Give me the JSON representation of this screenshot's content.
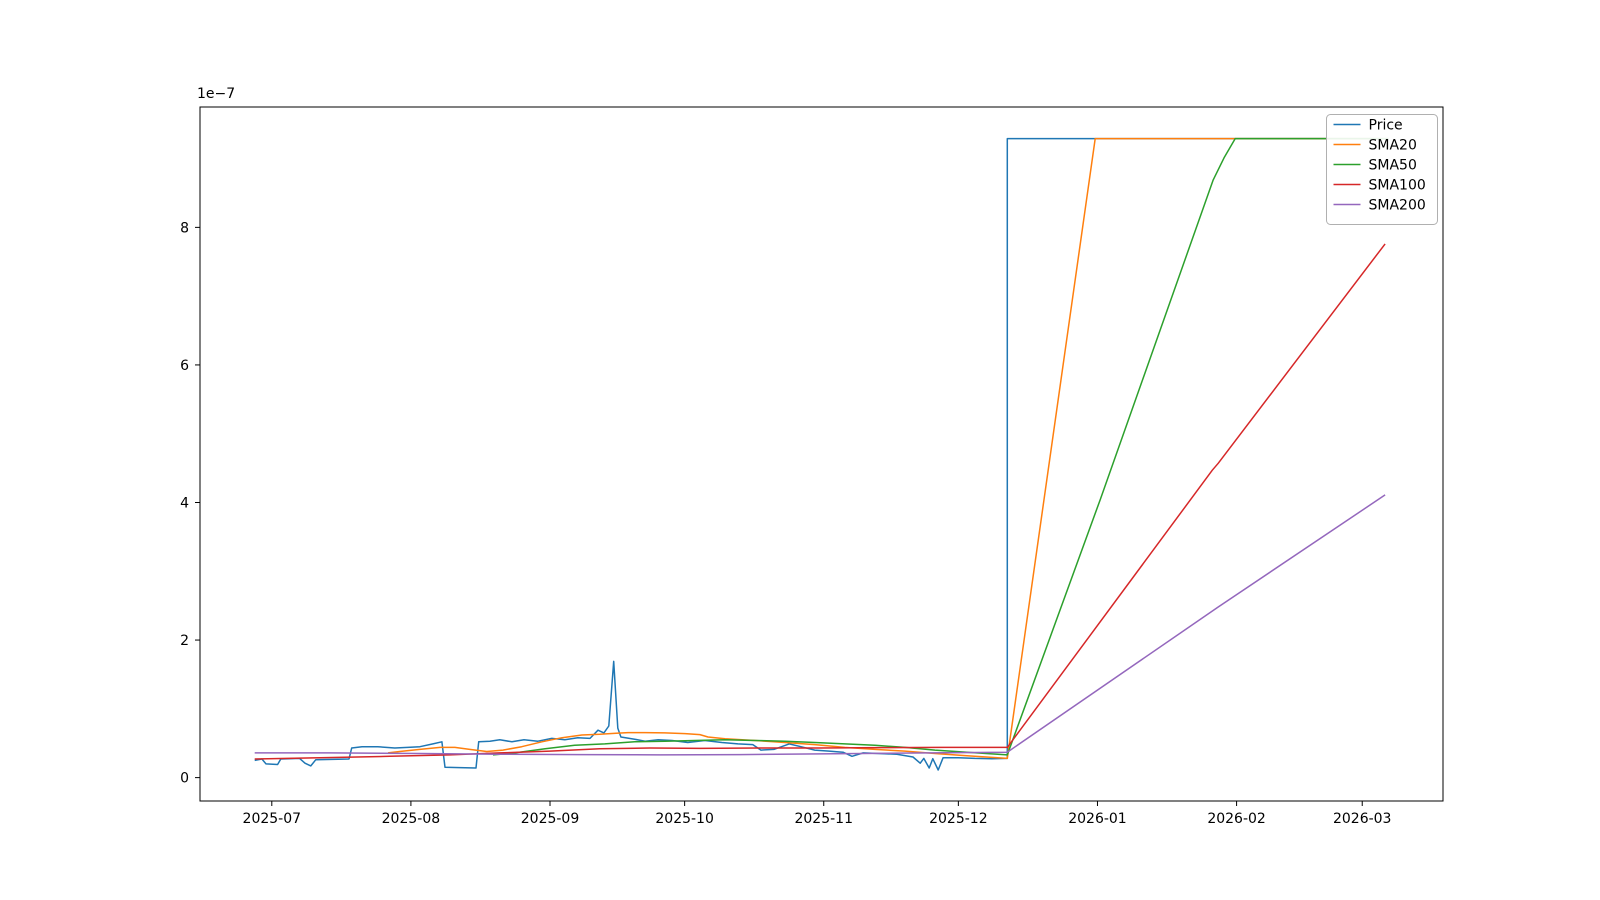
{
  "figure": {
    "background": "#ffffff",
    "plot_border_color": "#000000"
  },
  "chart_data": {
    "type": "line",
    "title": "",
    "xlabel": "",
    "ylabel": "",
    "offset_text": "1e−7",
    "grid": false,
    "legend_position": "upper right",
    "x_unit": "days since 2025-07-01",
    "y_unit": "×1e-7",
    "x_domain": [
      -16,
      261
    ],
    "y_domain": [
      -0.34,
      9.75
    ],
    "x_ticks": [
      {
        "day": 0,
        "label": "2025-07"
      },
      {
        "day": 31,
        "label": "2025-08"
      },
      {
        "day": 62,
        "label": "2025-09"
      },
      {
        "day": 92,
        "label": "2025-10"
      },
      {
        "day": 123,
        "label": "2025-11"
      },
      {
        "day": 153,
        "label": "2025-12"
      },
      {
        "day": 184,
        "label": "2026-01"
      },
      {
        "day": 215,
        "label": "2026-02"
      },
      {
        "day": 243,
        "label": "2026-03"
      }
    ],
    "y_ticks": [
      {
        "value": 0,
        "label": "0"
      },
      {
        "value": 2,
        "label": "2"
      },
      {
        "value": 4,
        "label": "4"
      },
      {
        "value": 6,
        "label": "6"
      },
      {
        "value": 8,
        "label": "8"
      }
    ],
    "series": [
      {
        "name": "Price",
        "color": "#1f77b4",
        "points": [
          [
            -3.8,
            0.25
          ],
          [
            -2.2,
            0.27
          ],
          [
            -1.3,
            0.2
          ],
          [
            1.3,
            0.19
          ],
          [
            2.0,
            0.27
          ],
          [
            6.2,
            0.28
          ],
          [
            7.4,
            0.21
          ],
          [
            8.7,
            0.17
          ],
          [
            9.8,
            0.26
          ],
          [
            17.2,
            0.27
          ],
          [
            17.8,
            0.43
          ],
          [
            20.1,
            0.45
          ],
          [
            23.6,
            0.45
          ],
          [
            27.4,
            0.43
          ],
          [
            30.3,
            0.44
          ],
          [
            33.0,
            0.45
          ],
          [
            35.9,
            0.49
          ],
          [
            37.9,
            0.52
          ],
          [
            38.6,
            0.15
          ],
          [
            41.9,
            0.145
          ],
          [
            45.5,
            0.14
          ],
          [
            46.1,
            0.52
          ],
          [
            48.6,
            0.53
          ],
          [
            50.8,
            0.55
          ],
          [
            53.5,
            0.52
          ],
          [
            56.2,
            0.55
          ],
          [
            59.3,
            0.53
          ],
          [
            62.4,
            0.57
          ],
          [
            65.3,
            0.55
          ],
          [
            68.2,
            0.58
          ],
          [
            70.9,
            0.57
          ],
          [
            72.7,
            0.69
          ],
          [
            74.0,
            0.65
          ],
          [
            75.1,
            0.75
          ],
          [
            76.2,
            1.69
          ],
          [
            77.1,
            0.72
          ],
          [
            77.8,
            0.59
          ],
          [
            80.7,
            0.56
          ],
          [
            83.2,
            0.53
          ],
          [
            86.1,
            0.55
          ],
          [
            89.2,
            0.54
          ],
          [
            92.7,
            0.51
          ],
          [
            96.5,
            0.54
          ],
          [
            100.3,
            0.51
          ],
          [
            103.9,
            0.49
          ],
          [
            107.2,
            0.48
          ],
          [
            109.0,
            0.4
          ],
          [
            111.9,
            0.41
          ],
          [
            115.3,
            0.49
          ],
          [
            117.9,
            0.45
          ],
          [
            121.0,
            0.4
          ],
          [
            124.2,
            0.385
          ],
          [
            127.3,
            0.37
          ],
          [
            129.3,
            0.31
          ],
          [
            131.8,
            0.36
          ],
          [
            135.1,
            0.35
          ],
          [
            139.3,
            0.34
          ],
          [
            142.9,
            0.3
          ],
          [
            144.5,
            0.21
          ],
          [
            145.3,
            0.28
          ],
          [
            146.5,
            0.14
          ],
          [
            147.3,
            0.275
          ],
          [
            148.5,
            0.11
          ],
          [
            149.6,
            0.29
          ],
          [
            153.0,
            0.29
          ],
          [
            156.7,
            0.28
          ],
          [
            160.5,
            0.275
          ],
          [
            163.9,
            0.28
          ],
          [
            163.9,
            9.29
          ],
          [
            248.8,
            9.29
          ]
        ]
      },
      {
        "name": "SMA20",
        "color": "#ff7f0e",
        "points": [
          [
            25.9,
            0.36
          ],
          [
            28.5,
            0.38
          ],
          [
            33.0,
            0.41
          ],
          [
            37.5,
            0.44
          ],
          [
            40.8,
            0.44
          ],
          [
            44.1,
            0.41
          ],
          [
            47.9,
            0.38
          ],
          [
            51.5,
            0.4
          ],
          [
            55.7,
            0.45
          ],
          [
            60.2,
            0.52
          ],
          [
            64.7,
            0.58
          ],
          [
            69.1,
            0.62
          ],
          [
            73.1,
            0.63
          ],
          [
            76.7,
            0.645
          ],
          [
            79.4,
            0.655
          ],
          [
            83.2,
            0.655
          ],
          [
            87.6,
            0.65
          ],
          [
            92.1,
            0.64
          ],
          [
            95.4,
            0.625
          ],
          [
            97.2,
            0.59
          ],
          [
            101.0,
            0.565
          ],
          [
            107.7,
            0.54
          ],
          [
            114.4,
            0.51
          ],
          [
            121.0,
            0.48
          ],
          [
            127.7,
            0.44
          ],
          [
            134.4,
            0.41
          ],
          [
            141.1,
            0.385
          ],
          [
            147.8,
            0.35
          ],
          [
            154.5,
            0.32
          ],
          [
            163.9,
            0.28
          ],
          [
            183.5,
            9.29
          ],
          [
            248.8,
            9.29
          ]
        ]
      },
      {
        "name": "SMA50",
        "color": "#2ca02c",
        "points": [
          [
            49.3,
            0.33
          ],
          [
            54.2,
            0.36
          ],
          [
            60.9,
            0.42
          ],
          [
            67.5,
            0.47
          ],
          [
            74.2,
            0.49
          ],
          [
            80.9,
            0.52
          ],
          [
            87.6,
            0.53
          ],
          [
            94.3,
            0.54
          ],
          [
            101.0,
            0.55
          ],
          [
            107.7,
            0.54
          ],
          [
            114.4,
            0.53
          ],
          [
            121.0,
            0.51
          ],
          [
            127.7,
            0.49
          ],
          [
            134.4,
            0.47
          ],
          [
            141.1,
            0.44
          ],
          [
            147.8,
            0.4
          ],
          [
            154.9,
            0.37
          ],
          [
            163.9,
            0.33
          ],
          [
            184.6,
            4.04
          ],
          [
            209.8,
            8.69
          ],
          [
            212.2,
            9.01
          ],
          [
            214.7,
            9.29
          ],
          [
            248.8,
            9.29
          ]
        ]
      },
      {
        "name": "SMA100",
        "color": "#d62728",
        "points": [
          [
            -3.8,
            0.27
          ],
          [
            10.7,
            0.29
          ],
          [
            26.3,
            0.31
          ],
          [
            39.7,
            0.33
          ],
          [
            50.8,
            0.36
          ],
          [
            62.0,
            0.385
          ],
          [
            73.1,
            0.42
          ],
          [
            84.3,
            0.43
          ],
          [
            95.4,
            0.425
          ],
          [
            108.8,
            0.43
          ],
          [
            122.2,
            0.43
          ],
          [
            135.5,
            0.436
          ],
          [
            148.9,
            0.44
          ],
          [
            163.9,
            0.44
          ],
          [
            209.6,
            4.47
          ],
          [
            210.9,
            4.57
          ],
          [
            248.1,
            7.76
          ]
        ]
      },
      {
        "name": "SMA200",
        "color": "#9467bd",
        "points": [
          [
            -3.8,
            0.36
          ],
          [
            12.9,
            0.36
          ],
          [
            33.0,
            0.35
          ],
          [
            50.8,
            0.34
          ],
          [
            68.7,
            0.335
          ],
          [
            86.5,
            0.33
          ],
          [
            104.3,
            0.335
          ],
          [
            122.2,
            0.345
          ],
          [
            140.0,
            0.356
          ],
          [
            153.4,
            0.364
          ],
          [
            163.9,
            0.37
          ],
          [
            210.9,
            2.48
          ],
          [
            248.1,
            4.11
          ]
        ]
      }
    ],
    "legend": [
      "Price",
      "SMA20",
      "SMA50",
      "SMA100",
      "SMA200"
    ]
  }
}
